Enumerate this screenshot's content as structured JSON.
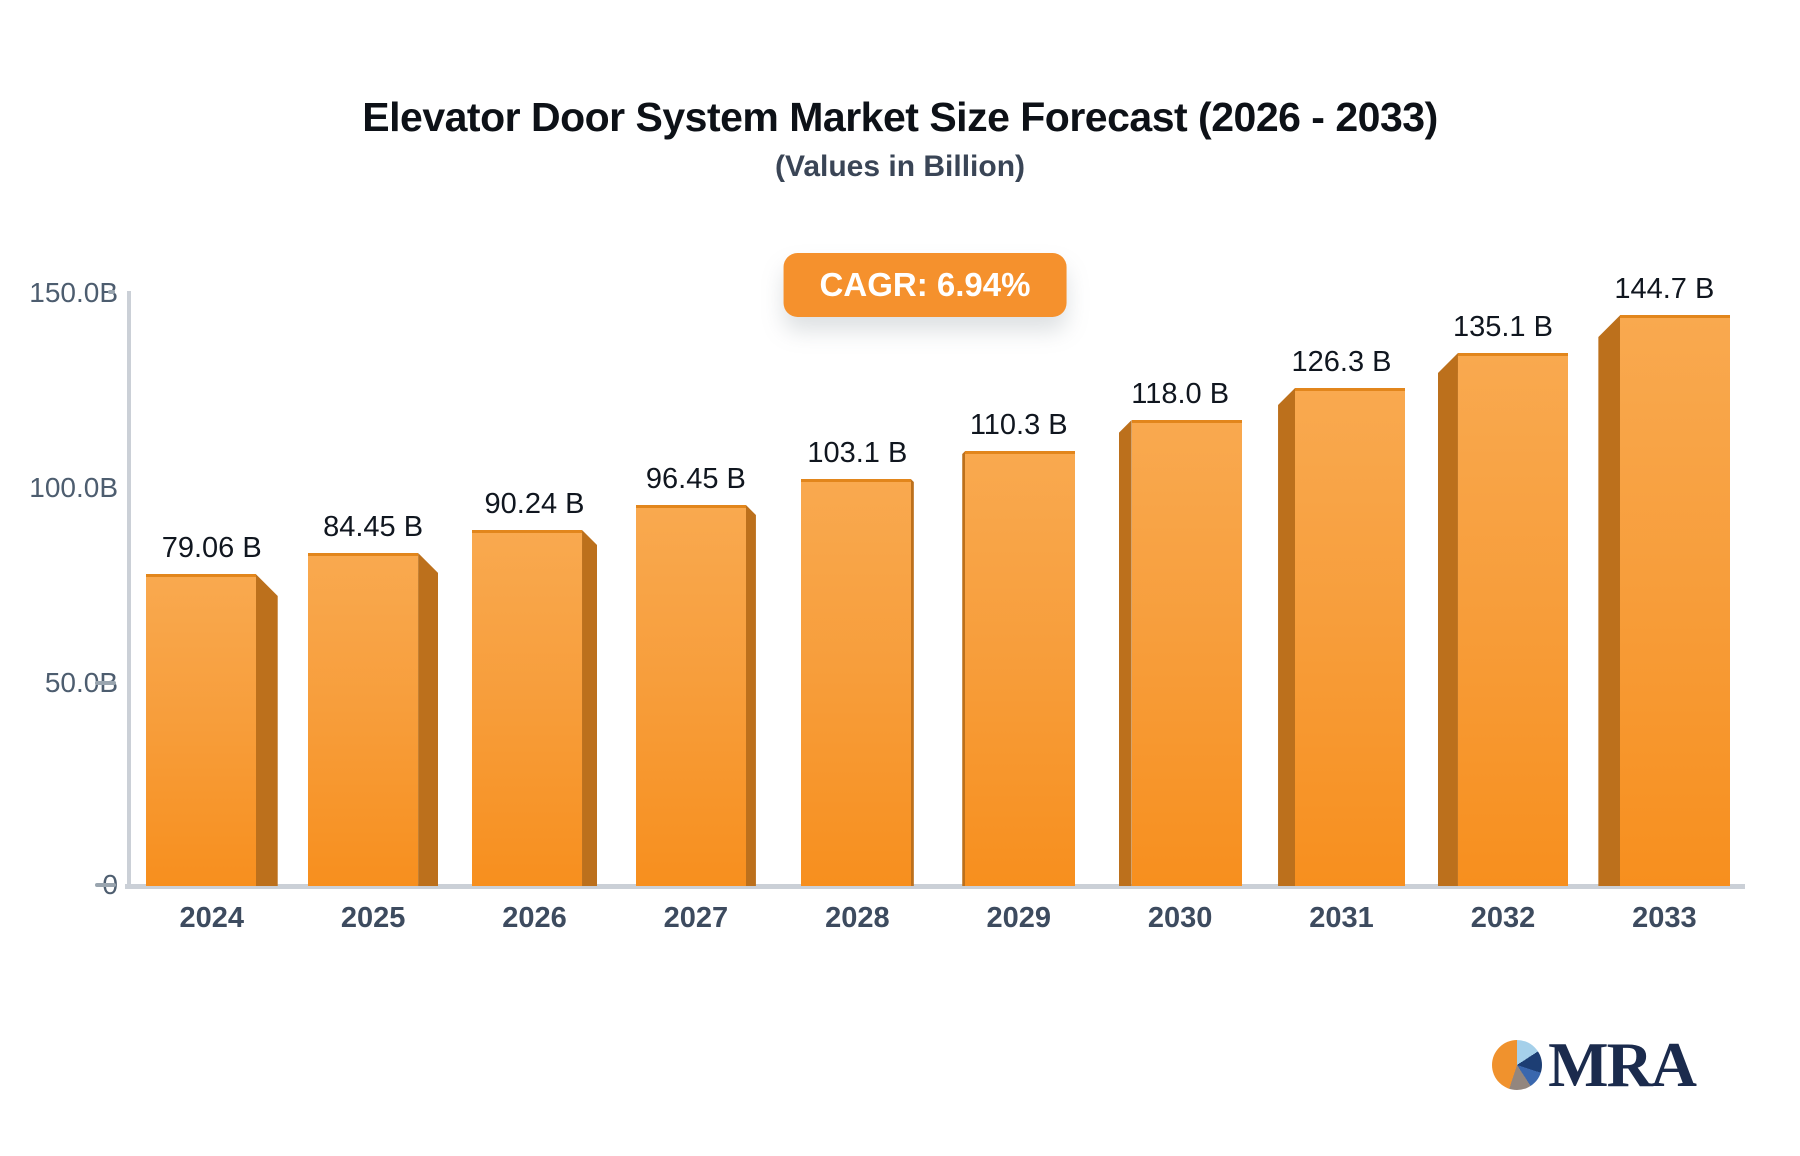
{
  "header": {
    "title": "Elevator Door System Market Size Forecast (2026 - 2033)",
    "subtitle": "(Values in Billion)"
  },
  "badge": {
    "label": "CAGR: 6.94%"
  },
  "logo": {
    "text": "MRA",
    "icon": "pie-chart-icon"
  },
  "chart_data": {
    "type": "bar",
    "title": "Elevator Door System Market Size Forecast (2026 - 2033)",
    "subtitle": "(Values in Billion)",
    "annotation": "CAGR: 6.94%",
    "categories": [
      "2024",
      "2025",
      "2026",
      "2027",
      "2028",
      "2029",
      "2030",
      "2031",
      "2032",
      "2033"
    ],
    "values": [
      79.06,
      84.45,
      90.24,
      96.45,
      103.1,
      110.3,
      118.0,
      126.3,
      135.1,
      144.7
    ],
    "value_labels": [
      "79.06 B",
      "84.45 B",
      "90.24 B",
      "96.45 B",
      "103.1 B",
      "110.3 B",
      "118.0 B",
      "126.3 B",
      "135.1 B",
      "144.7 B"
    ],
    "unit": "Billion",
    "xlabel": "",
    "ylabel": "",
    "ylim": [
      0,
      150
    ],
    "ytick_values": [
      150,
      100,
      50,
      0
    ],
    "ytick_labels": [
      "150.0B",
      "100.0B",
      "50.0B",
      "0"
    ],
    "grid": "off",
    "legend": "none",
    "bar_color_top": "#f9a94f",
    "bar_color_bottom": "#f78f1e",
    "bar_side_color": "#bc701c",
    "badge_color": "#f5912d",
    "axis_color": "#cbd0d7"
  }
}
